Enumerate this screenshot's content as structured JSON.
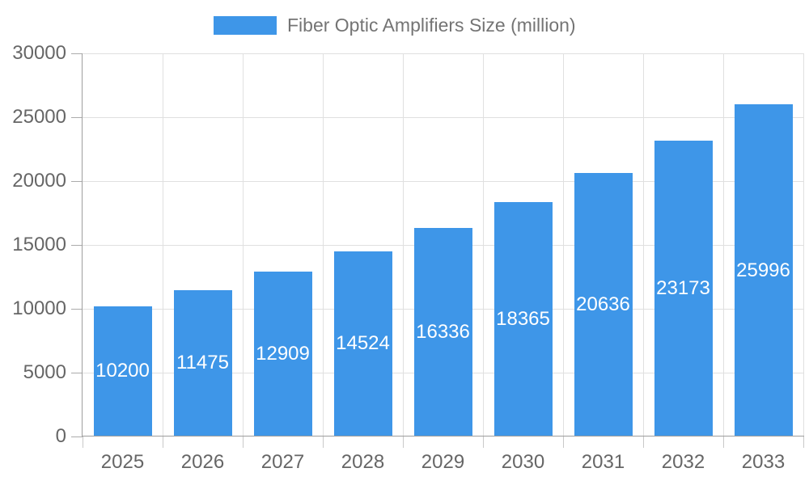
{
  "legend": {
    "label": "Fiber Optic Amplifiers Size (million)"
  },
  "colors": {
    "bar": "#3E96E8",
    "bar_label": "#FFFFFF",
    "grid_line": "#E0E0E0",
    "axis_line": "#9E9E9E",
    "y_tick": "#ABABAB",
    "x_tick": "#C9C9C9",
    "axis_text": "#666666",
    "legend_text": "#747474",
    "background": "#FFFFFF"
  },
  "chart_data": {
    "type": "bar",
    "title": "Fiber Optic Amplifiers Size (million)",
    "categories": [
      "2025",
      "2026",
      "2027",
      "2028",
      "2029",
      "2030",
      "2031",
      "2032",
      "2033"
    ],
    "values": [
      10200,
      11475,
      12909,
      14524,
      16336,
      18365,
      20636,
      23173,
      25996
    ],
    "series": [
      {
        "name": "Fiber Optic Amplifiers Size (million)",
        "values": [
          10200,
          11475,
          12909,
          14524,
          16336,
          18365,
          20636,
          23173,
          25996
        ]
      }
    ],
    "xlabel": "",
    "ylabel": "",
    "ylim": [
      0,
      30000
    ],
    "yticks": [
      0,
      5000,
      10000,
      15000,
      20000,
      25000,
      30000
    ],
    "grid": true,
    "legend_position": "top-center",
    "value_labels": "inside-center"
  }
}
